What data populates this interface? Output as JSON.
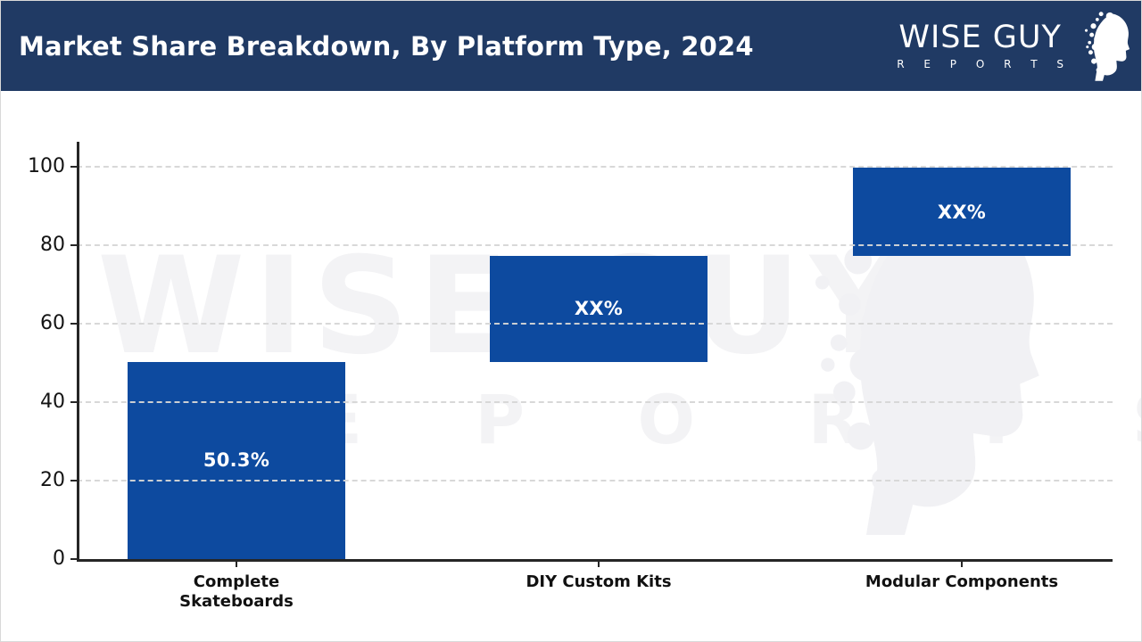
{
  "header": {
    "title": "Market Share Breakdown, By Platform Type, 2024",
    "logo": {
      "line1": "WISE GUY",
      "line2": "R E P O R T S"
    }
  },
  "watermark": {
    "line1": "WISE GUY",
    "line2": "R E P O R T S"
  },
  "chart_data": {
    "type": "bar",
    "subtype": "waterfall",
    "title": "Market Share Breakdown, By Platform Type, 2024",
    "categories": [
      "Complete\nSkateboards",
      "DIY Custom Kits",
      "Modular Components"
    ],
    "bars": [
      {
        "category": "Complete Skateboards",
        "start": 0,
        "end": 50.3,
        "label": "50.3%"
      },
      {
        "category": "DIY Custom Kits",
        "start": 50.3,
        "end": 77.3,
        "label": "XX%"
      },
      {
        "category": "Modular Components",
        "start": 77.3,
        "end": 99.7,
        "label": "XX%"
      }
    ],
    "xlabel": "",
    "ylabel": "",
    "ylim": [
      0,
      105
    ],
    "yticks": [
      0,
      20,
      40,
      60,
      80,
      100
    ],
    "grid": "horizontal-dashed",
    "legend": "none",
    "bar_color": "#0D4A9F",
    "bar_label_color": "#ffffff"
  },
  "colors": {
    "header_bg": "#203A64",
    "bar": "#0D4A9F",
    "grid": "#d6d6d6",
    "axis": "#262626",
    "watermark": "#f3f3f5",
    "page_border": "#d9d9d9"
  }
}
